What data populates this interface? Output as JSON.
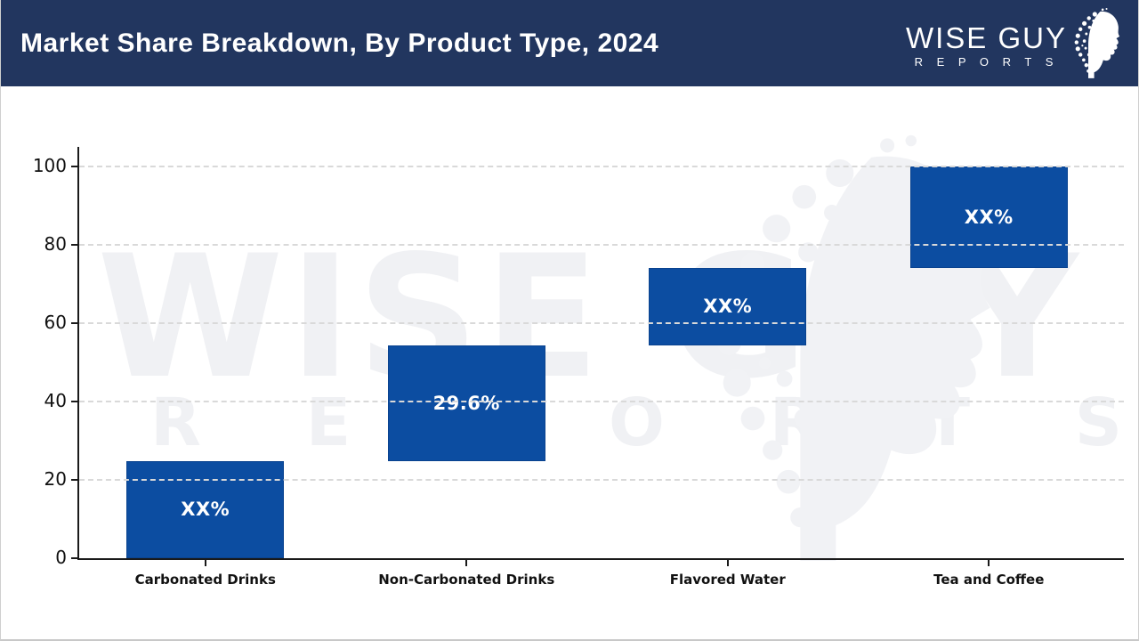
{
  "header": {
    "title": "Market Share Breakdown, By Product Type, 2024",
    "logo_line1": "WISE GUY",
    "logo_line2": "R E P O R T S"
  },
  "watermark": {
    "line1": "WISE GUY",
    "line2": "R E P O R T S"
  },
  "colors": {
    "header_bg": "#22365f",
    "bar": "#0c4da1",
    "axis": "#1a1a1a",
    "gridline": "#d9d9d9",
    "watermark": "#f0f1f4",
    "label_on_bar": "#ffffff"
  },
  "chart_data": {
    "type": "bar",
    "variant": "waterfall",
    "title": "Market Share Breakdown, By Product Type, 2024",
    "categories": [
      "Carbonated Drinks",
      "Non-Carbonated Drinks",
      "Flavored Water",
      "Tea and Coffee"
    ],
    "segments": [
      {
        "category": "Carbonated Drinks",
        "start": 0,
        "end": 24.8,
        "label": "XX%"
      },
      {
        "category": "Non-Carbonated Drinks",
        "start": 24.8,
        "end": 54.4,
        "label": "29.6%"
      },
      {
        "category": "Flavored Water",
        "start": 54.4,
        "end": 74.1,
        "label": "XX%"
      },
      {
        "category": "Tea and Coffee",
        "start": 74.1,
        "end": 100,
        "label": "XX%"
      }
    ],
    "ylim": [
      0,
      100
    ],
    "yticks": [
      0,
      20,
      40,
      60,
      80,
      100
    ],
    "grid": "horizontal-dashed",
    "legend": "none"
  }
}
